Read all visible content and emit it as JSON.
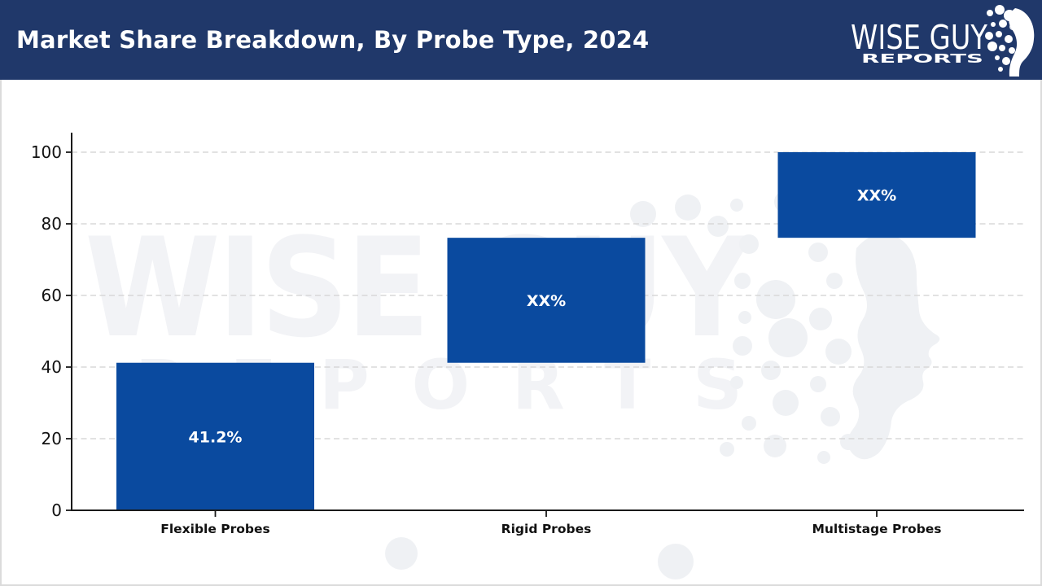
{
  "header": {
    "title": "Market Share Breakdown, By Probe Type, 2024",
    "bg_color": "#20386A",
    "logo": {
      "line1": "WISE GUY",
      "line2": "REPORTS"
    }
  },
  "watermark": {
    "line1": "WISE GUY",
    "line2": "REPORTS"
  },
  "chart_data": {
    "type": "bar",
    "subtype": "waterfall",
    "title": "Market Share Breakdown, By Probe Type, 2024",
    "xlabel": "",
    "ylabel": "",
    "categories": [
      "Flexible Probes",
      "Rigid Probes",
      "Multistage Probes"
    ],
    "segments": [
      {
        "category": "Flexible Probes",
        "start": 0,
        "end": 41.2,
        "label": "41.2%"
      },
      {
        "category": "Rigid Probes",
        "start": 41.2,
        "end": 76.1,
        "label": "XX%"
      },
      {
        "category": "Multistage Probes",
        "start": 76.1,
        "end": 100,
        "label": "XX%"
      }
    ],
    "yticks": [
      0,
      20,
      40,
      60,
      80,
      100
    ],
    "ylim": [
      0,
      105.5
    ],
    "grid": true,
    "legend": false,
    "bar_color": "#0A4A9F",
    "bar_label_color": "#FFFFFF",
    "gridline_color": "#D8D8D8",
    "axis_color": "#1A1A1A",
    "tick_label_color": "#111111"
  }
}
